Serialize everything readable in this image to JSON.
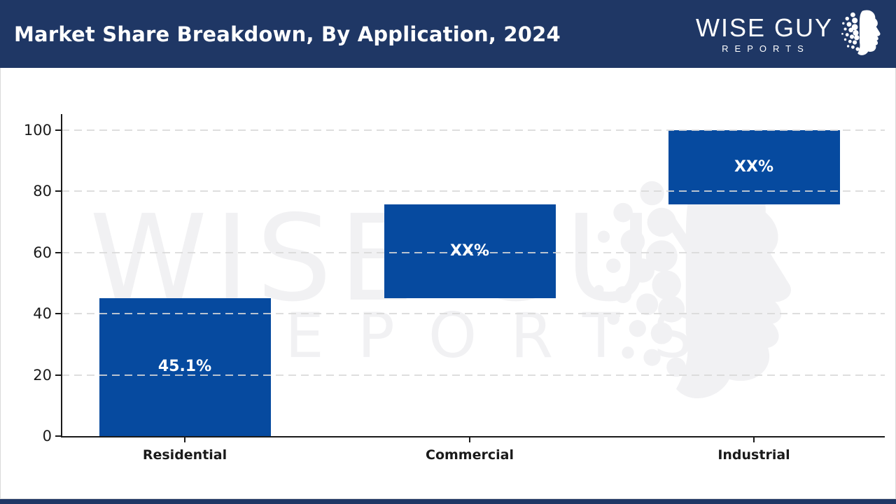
{
  "header": {
    "title": "Market Share Breakdown, By Application, 2024",
    "logo": {
      "line1": "WISE GUY",
      "line2": "REPORTS"
    }
  },
  "watermark": {
    "line1": "WISE GUY",
    "line2": "REPORTS"
  },
  "colors": {
    "header_bg": "#1f3765",
    "bar": "#064a9f",
    "bar_label": "#ffffff",
    "axis": "#1a1a1a",
    "grid": "#d8d8d8",
    "watermark": "#f1f1f3",
    "title_text": "#ffffff"
  },
  "chart_data": {
    "type": "bar",
    "subtype": "floating-waterfall",
    "title": "Market Share Breakdown, By Application, 2024",
    "categories": [
      "Residential",
      "Commercial",
      "Industrial"
    ],
    "segments": [
      {
        "category": "Residential",
        "start": 0,
        "end": 45.1,
        "label": "45.1%"
      },
      {
        "category": "Commercial",
        "start": 45.1,
        "end": 75.8,
        "label": "XX%"
      },
      {
        "category": "Industrial",
        "start": 75.8,
        "end": 100,
        "label": "XX%"
      }
    ],
    "ylim": [
      0,
      100
    ],
    "yticks": [
      0,
      20,
      40,
      60,
      80,
      100
    ],
    "xlabel": "",
    "ylabel": "",
    "grid": "horizontal-dashed",
    "legend": "none"
  }
}
